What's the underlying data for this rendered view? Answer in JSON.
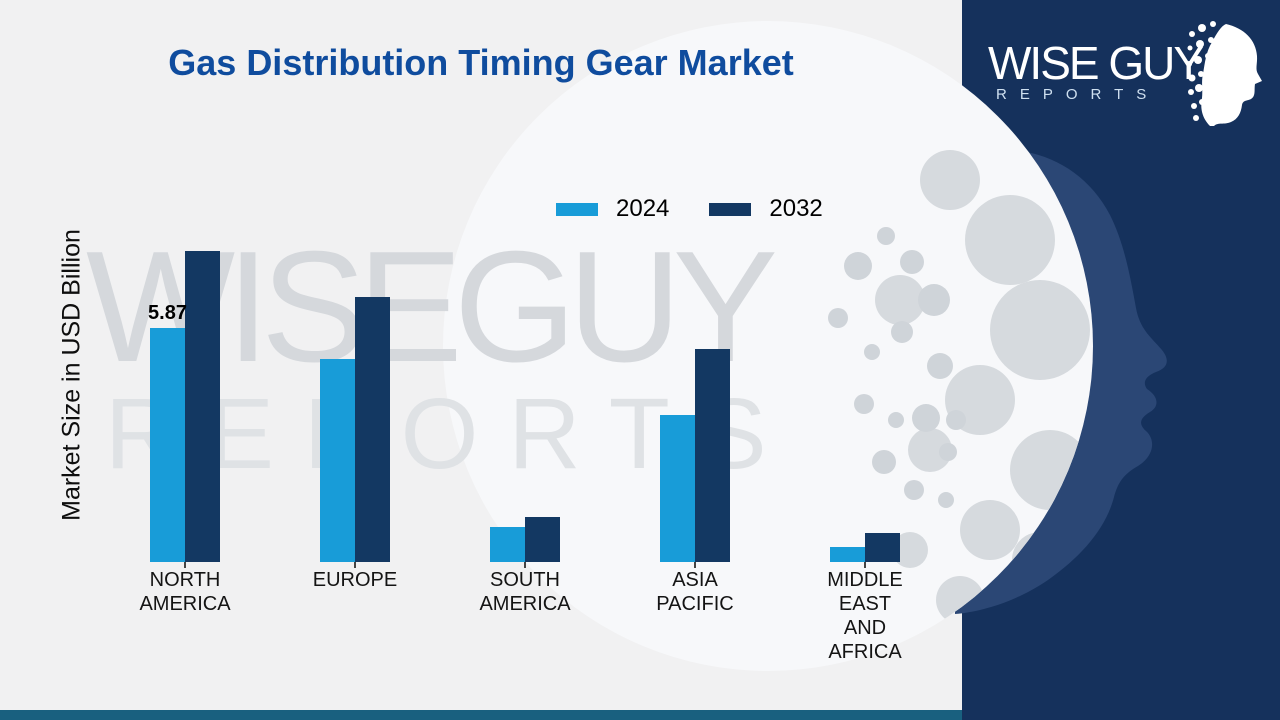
{
  "page": {
    "title": "Gas Distribution Timing Gear Market"
  },
  "logo": {
    "name_line": "WISE GUY",
    "reports_line": "REPORTS"
  },
  "chart_data": {
    "type": "bar",
    "title": "Gas Distribution Timing Gear Market",
    "xlabel": "",
    "ylabel": "Market Size in USD Billion",
    "categories": [
      "NORTH AMERICA",
      "EUROPE",
      "SOUTH AMERICA",
      "ASIA PACIFIC",
      "MIDDLE EAST AND AFRICA"
    ],
    "series": [
      {
        "name": "2024",
        "color": "#189cd8",
        "values": [
          5.87,
          5.1,
          0.88,
          3.7,
          0.38
        ]
      },
      {
        "name": "2032",
        "color": "#133862",
        "values": [
          7.8,
          6.65,
          1.13,
          5.35,
          0.73
        ]
      }
    ],
    "data_labels": [
      {
        "series": "2024",
        "category": "NORTH AMERICA",
        "text": "5.87"
      }
    ],
    "legend_position": "top",
    "grid": false,
    "ylim": [
      0,
      8.5
    ]
  },
  "colors": {
    "title_blue": "#0f4c9e",
    "bar_2024": "#189cd8",
    "bar_2032": "#133862",
    "panel_navy": "#15315c",
    "face_blue": "#2b4775",
    "bottom_teal": "#19607f",
    "watermark_gray": "#d5d8dc"
  }
}
